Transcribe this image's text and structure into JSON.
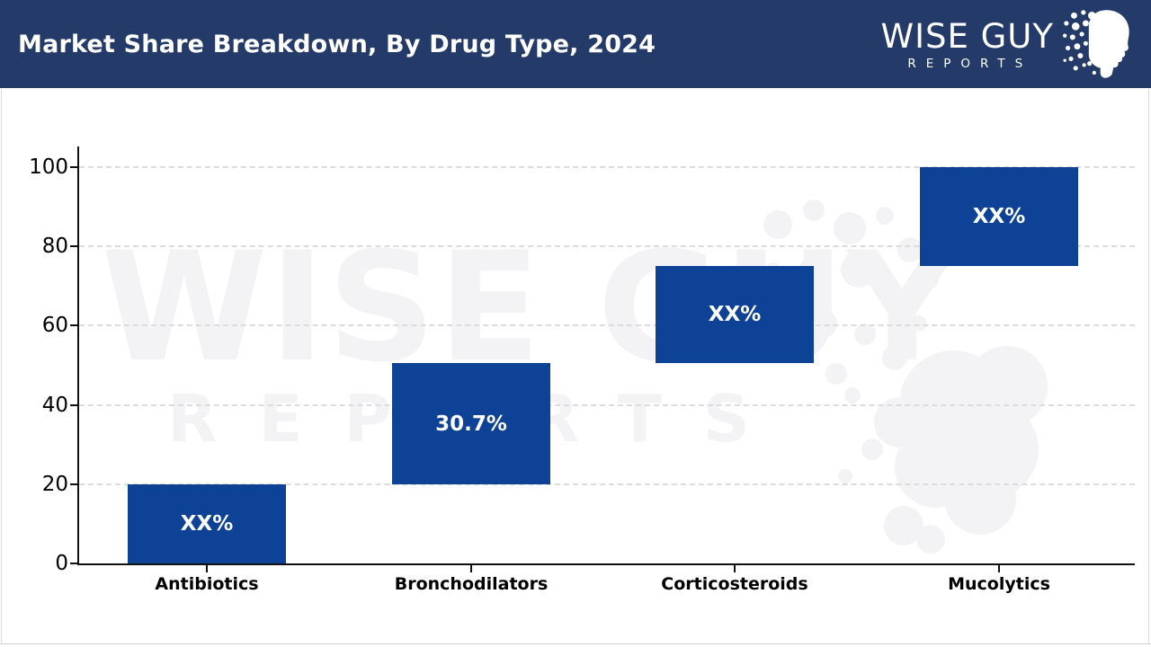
{
  "header": {
    "title": "Market Share Breakdown, By Drug Type, 2024",
    "logo": {
      "line1": "WISE GUY",
      "line2": "REPORTS"
    }
  },
  "watermark": {
    "line1": "WISE GUY",
    "line2": "REPORTS"
  },
  "colors": {
    "header_bg": "#243a68",
    "bar": "#0d4296",
    "grid": "#dcdcdc",
    "axis": "#111111",
    "bar_label": "#ffffff",
    "watermark": "#f3f3f5",
    "title_text": "#ffffff"
  },
  "chart_data": {
    "type": "bar",
    "variant": "waterfall",
    "title": "Market Share Breakdown, By Drug Type, 2024",
    "categories": [
      "Antibiotics",
      "Bronchodilators",
      "Corticosteroids",
      "Mucolytics"
    ],
    "segments": [
      {
        "category": "Antibiotics",
        "start": 0,
        "end": 19.9,
        "label": "XX%"
      },
      {
        "category": "Bronchodilators",
        "start": 19.9,
        "end": 50.6,
        "label": "30.7%"
      },
      {
        "category": "Corticosteroids",
        "start": 50.6,
        "end": 75.1,
        "label": "XX%"
      },
      {
        "category": "Mucolytics",
        "start": 75.1,
        "end": 100,
        "label": "XX%"
      }
    ],
    "yticks": [
      0,
      20,
      40,
      60,
      80,
      100
    ],
    "ylim": [
      0,
      105
    ],
    "xlabel": "",
    "ylabel": "",
    "grid": "horizontal-dashed",
    "legend": "none"
  }
}
